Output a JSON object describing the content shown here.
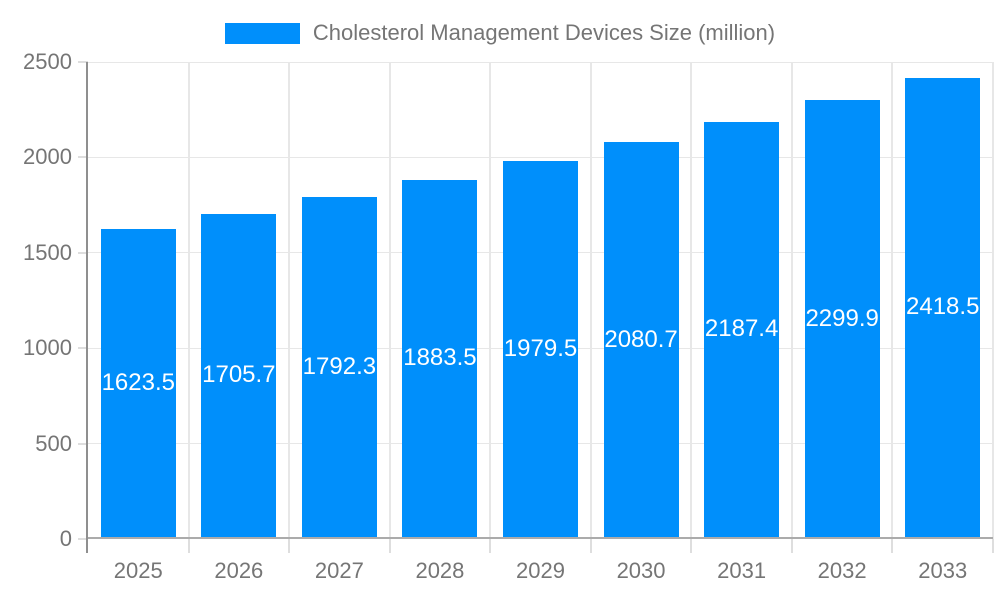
{
  "chart_data": {
    "type": "bar",
    "title": "Cholesterol Management Devices Size (million)",
    "categories": [
      "2025",
      "2026",
      "2027",
      "2028",
      "2029",
      "2030",
      "2031",
      "2032",
      "2033"
    ],
    "values": [
      1623.5,
      1705.7,
      1792.3,
      1883.5,
      1979.5,
      2080.7,
      2187.4,
      2299.9,
      2418.5
    ],
    "xlabel": "",
    "ylabel": "",
    "ylim": [
      0,
      2500
    ],
    "yticks": [
      0,
      500,
      1000,
      1500,
      2000,
      2500
    ],
    "grid": true,
    "legend_position": "top",
    "value_labels": "inside-center",
    "colors": {
      "bar": "#008ffb",
      "value_label": "#ffffff",
      "axis_text": "#757575",
      "gridline": "#e7e7e7",
      "tick": "#dedede",
      "y_axis_line": "#8f8f8f",
      "baseline": "#ababab",
      "background": "#ffffff"
    }
  }
}
